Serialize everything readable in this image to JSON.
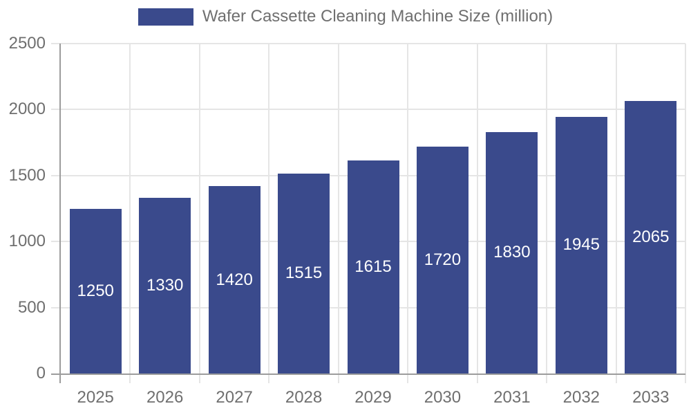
{
  "legend": {
    "label": "Wafer Cassette Cleaning Machine Size (million)"
  },
  "chart_data": {
    "type": "bar",
    "categories": [
      "2025",
      "2026",
      "2027",
      "2028",
      "2029",
      "2030",
      "2031",
      "2032",
      "2033"
    ],
    "series": [
      {
        "name": "Wafer Cassette Cleaning Machine Size (million)",
        "values": [
          1250,
          1330,
          1420,
          1515,
          1615,
          1720,
          1830,
          1945,
          2065
        ]
      }
    ],
    "title": "",
    "xlabel": "",
    "ylabel": "",
    "ylim": [
      0,
      2500
    ],
    "yticks": [
      0,
      500,
      1000,
      1500,
      2000,
      2500
    ],
    "grid": true,
    "legend_position": "top-center",
    "bar_value_labels": "centered-inside",
    "colors": {
      "bar": "#3a4a8c",
      "grid": "#e5e5e5",
      "axis": "#9c9c9c",
      "tick_text": "#6f6f6f",
      "bar_label_text": "#ffffff",
      "background": "#ffffff"
    }
  }
}
